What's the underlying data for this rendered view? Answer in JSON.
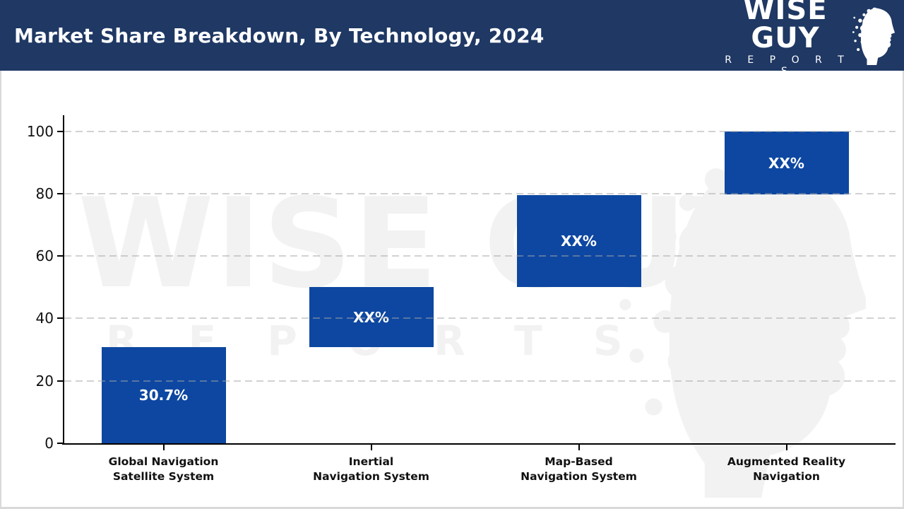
{
  "header": {
    "title": "Market Share Breakdown, By Technology, 2024",
    "logo": {
      "line1": "WISE GUY",
      "line2": "R E P O R T S"
    }
  },
  "watermark": {
    "line1": "WISE GUY",
    "line2": "REPORTS"
  },
  "colors": {
    "header_bg": "#1f3864",
    "bar": "#0d47a1",
    "grid": "#d9d9d9",
    "axis": "#000000",
    "value_label": "#ffffff",
    "watermark": "#f2f2f2"
  },
  "chart_data": {
    "type": "bar",
    "subtype": "waterfall",
    "title": "Market Share Breakdown, By Technology, 2024",
    "categories": [
      "Global Navigation Satellite System",
      "Inertial Navigation System",
      "Map-Based Navigation System",
      "Augmented Reality Navigation"
    ],
    "category_lines": [
      [
        "Global Navigation",
        "Satellite System"
      ],
      [
        "Inertial",
        "Navigation System"
      ],
      [
        "Map-Based",
        "Navigation System"
      ],
      [
        "Augmented Reality",
        "Navigation"
      ]
    ],
    "bars": [
      {
        "start": 0,
        "end": 30.7,
        "label": "30.7%"
      },
      {
        "start": 30.7,
        "end": 50.0,
        "label": "XX%"
      },
      {
        "start": 50.0,
        "end": 79.5,
        "label": "XX%"
      },
      {
        "start": 79.7,
        "end": 99.8,
        "label": "XX%"
      }
    ],
    "xlabel": "",
    "ylabel": "",
    "ylim": [
      0,
      100
    ],
    "yticks": [
      0,
      20,
      40,
      60,
      80,
      100
    ],
    "grid": "dashed-horizontal",
    "legend": false
  }
}
